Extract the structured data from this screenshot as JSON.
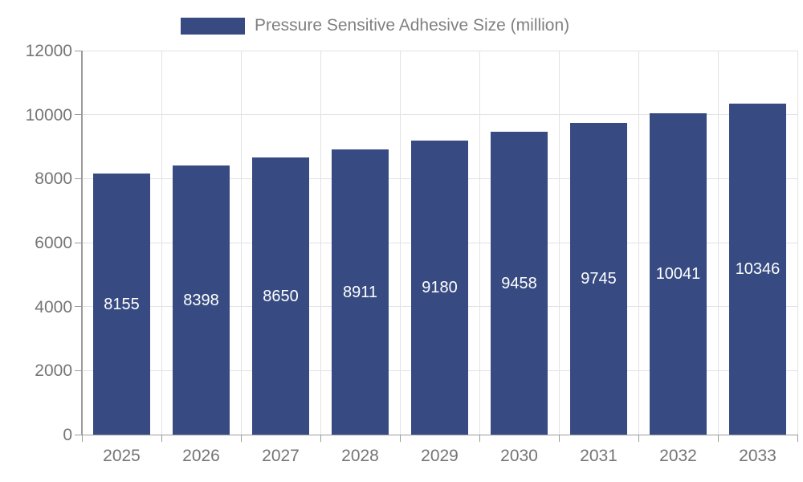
{
  "chart_data": {
    "type": "bar",
    "title": "Pressure Sensitive Adhesive Size (million)",
    "categories": [
      "2025",
      "2026",
      "2027",
      "2028",
      "2029",
      "2030",
      "2031",
      "2032",
      "2033"
    ],
    "values": [
      8155,
      8398,
      8650,
      8911,
      9180,
      9458,
      9745,
      10041,
      10346
    ],
    "value_labels": [
      "8155",
      "8398",
      "8650",
      "8911",
      "9180",
      "9458",
      "9745",
      "10041",
      "10346"
    ],
    "xlabel": "",
    "ylabel": "",
    "ylim": [
      0,
      12000
    ],
    "yticks": [
      0,
      2000,
      4000,
      6000,
      8000,
      10000,
      12000
    ],
    "ytick_labels": [
      "0",
      "2000",
      "4000",
      "6000",
      "8000",
      "10000",
      "12000"
    ],
    "grid": true,
    "legend_position": "top-center",
    "colors": {
      "bar": "#374B82",
      "value_text": "#FFFFFF",
      "axis_text": "#757575",
      "legend_text": "#808080",
      "grid_line": "#E2E2E7",
      "axis_line": "#9B9B9B",
      "background": "#FFFFFF"
    }
  }
}
